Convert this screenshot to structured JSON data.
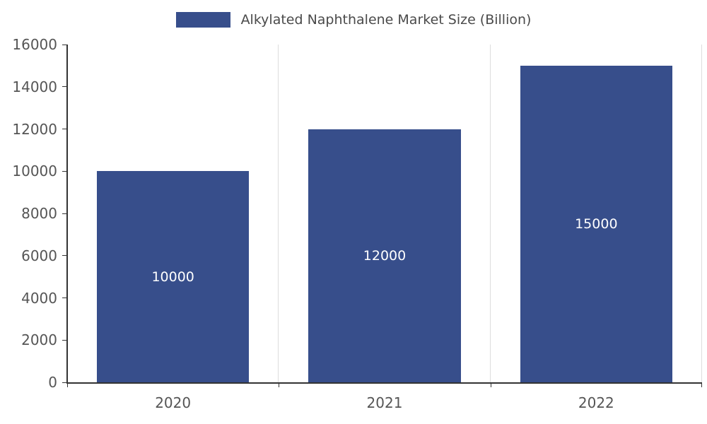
{
  "chart_data": {
    "type": "bar",
    "title": "Alkylated Naphthalene Market Size (Billion)",
    "categories": [
      "2020",
      "2021",
      "2022"
    ],
    "values": [
      10000,
      12000,
      15000
    ],
    "data_labels": [
      "10000",
      "12000",
      "15000"
    ],
    "ylim": [
      0,
      16000
    ],
    "ytick_step": 2000,
    "ytick_labels": [
      "0",
      "2000",
      "4000",
      "6000",
      "8000",
      "10000",
      "12000",
      "14000",
      "16000"
    ],
    "legend": {
      "label": "Alkylated Naphthalene Market Size (Billion)",
      "position": "top"
    },
    "grid": "vertical-split-lines",
    "colors": {
      "bar": "#374e8b",
      "axis": "#333333",
      "gridline": "#dddddd",
      "tick_label": "#555555",
      "data_label": "#ffffff",
      "legend_text": "#4a4a4a"
    }
  }
}
